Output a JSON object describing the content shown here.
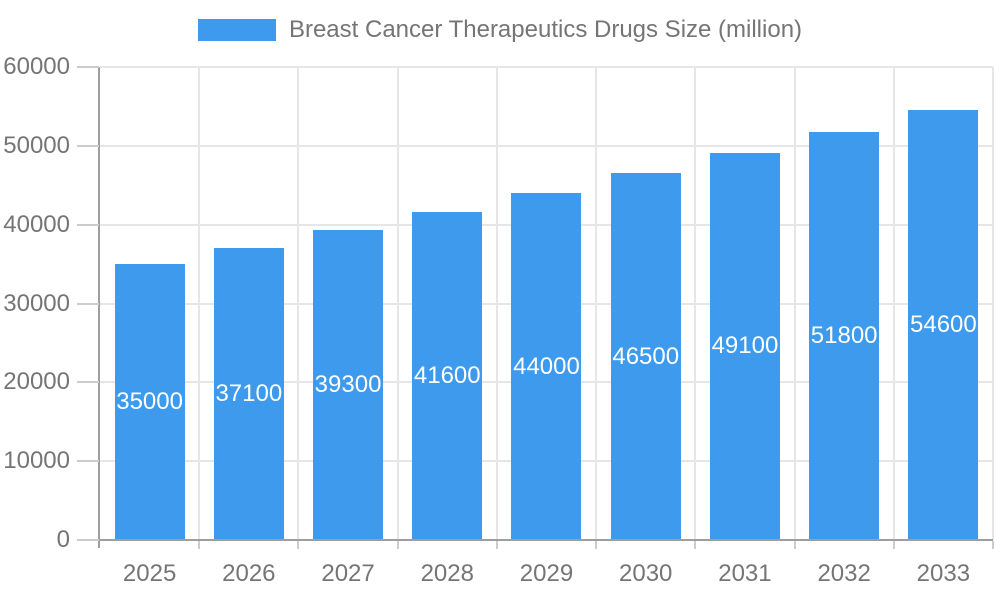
{
  "chart_data": {
    "type": "bar",
    "title": "Breast Cancer Therapeutics Drugs Size (million)",
    "legend_position": "top-center",
    "categories": [
      "2025",
      "2026",
      "2027",
      "2028",
      "2029",
      "2030",
      "2031",
      "2032",
      "2033"
    ],
    "series": [
      {
        "name": "Breast Cancer Therapeutics Drugs Size (million)",
        "values": [
          35000,
          37100,
          39300,
          41600,
          44000,
          46500,
          49100,
          51800,
          54600
        ]
      }
    ],
    "bar_value_labels": [
      "35000",
      "37100",
      "39300",
      "41600",
      "44000",
      "46500",
      "49100",
      "51800",
      "54600"
    ],
    "xlabel": "",
    "ylabel": "",
    "ylim": [
      0,
      60000
    ],
    "y_ticks": [
      0,
      10000,
      20000,
      30000,
      40000,
      50000,
      60000
    ],
    "y_tick_labels": [
      "0",
      "10000",
      "20000",
      "30000",
      "40000",
      "50000",
      "60000"
    ],
    "grid": true
  },
  "colors": {
    "bar": "#3D9AEC",
    "bar_label_text": "#ffffff",
    "axis_text": "#757575",
    "title_text": "#757575",
    "axis_line": "#9e9e9e",
    "gridline": "#e6e6e6",
    "tick": "#cccccc",
    "background": "#ffffff"
  }
}
